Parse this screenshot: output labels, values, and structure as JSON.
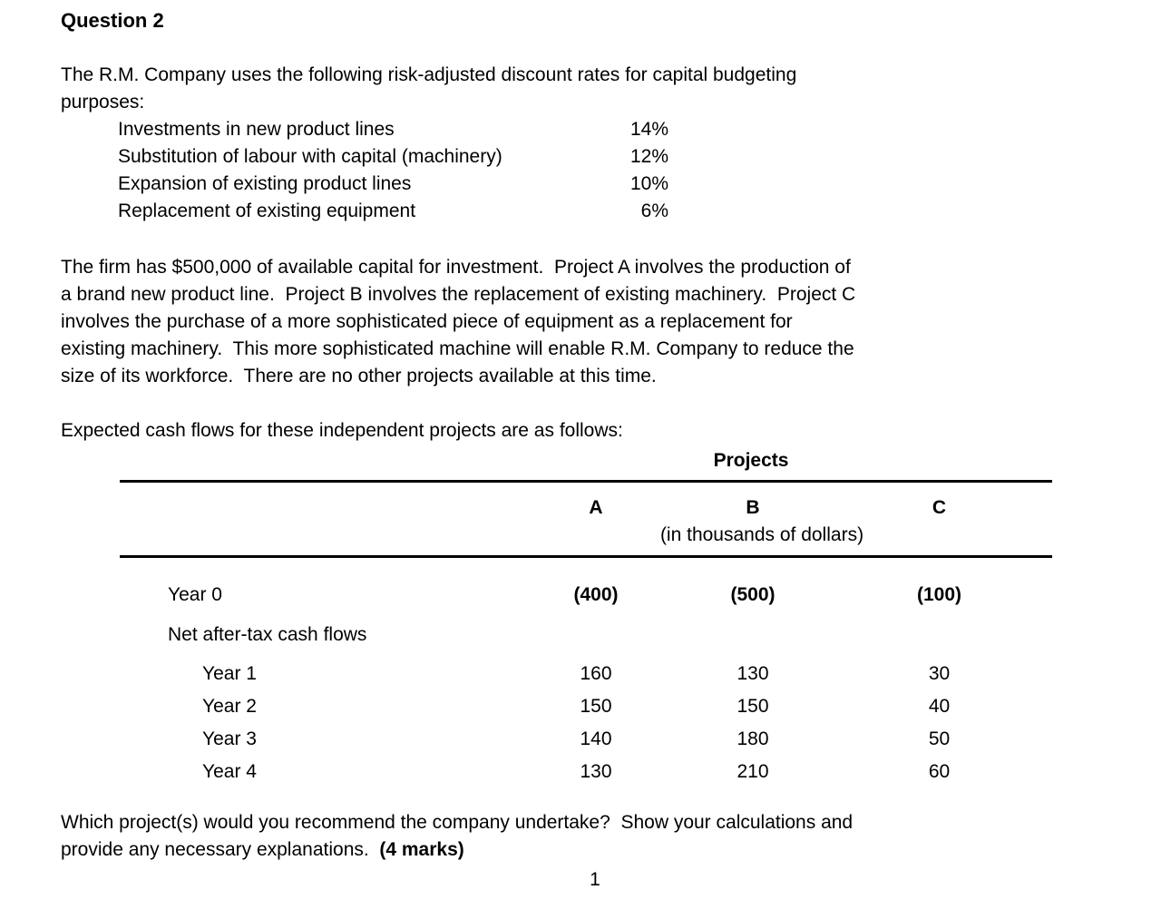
{
  "page": {
    "title": "Question 2",
    "page_number": "1"
  },
  "intro": {
    "text": "The R.M. Company uses the following risk-adjusted discount rates for capital budgeting\npurposes:"
  },
  "discount_rates": [
    {
      "label": "Investments in new product lines",
      "rate": "14%"
    },
    {
      "label": "Substitution of labour with capital (machinery)",
      "rate": "12%"
    },
    {
      "label": "Expansion of existing product lines",
      "rate": "10%"
    },
    {
      "label": "Replacement of existing equipment",
      "rate": "6%"
    }
  ],
  "body": {
    "text": "The firm has $500,000 of available capital for investment.  Project A involves the production of\na brand new product line.  Project B involves the replacement of existing machinery.  Project C\ninvolves the purchase of a more sophisticated piece of equipment as a replacement for\nexisting machinery.  This more sophisticated machine will enable R.M. Company to reduce the\nsize of its workforce.  There are no other projects available at this time."
  },
  "table_intro": {
    "text": "Expected cash flows for these independent projects are as follows:"
  },
  "cashflow_table": {
    "title": "Projects",
    "columns": [
      "A",
      "B",
      "C"
    ],
    "units_note": "(in thousands of dollars)",
    "rows": [
      {
        "label": "Year 0",
        "values": [
          "(400)",
          "(500)",
          "(100)"
        ]
      },
      {
        "label": "Net after-tax cash flows",
        "values": [
          "",
          "",
          ""
        ]
      },
      {
        "label": "Year 1",
        "values": [
          "160",
          "130",
          "30"
        ]
      },
      {
        "label": "Year 2",
        "values": [
          "150",
          "150",
          "40"
        ]
      },
      {
        "label": "Year 3",
        "values": [
          "140",
          "180",
          "50"
        ]
      },
      {
        "label": "Year 4",
        "values": [
          "130",
          "210",
          "60"
        ]
      }
    ]
  },
  "question": {
    "text": "Which project(s) would you recommend the company undertake?  Show your calculations and\nprovide any necessary explanations.  ",
    "marks": "(4 marks)"
  }
}
